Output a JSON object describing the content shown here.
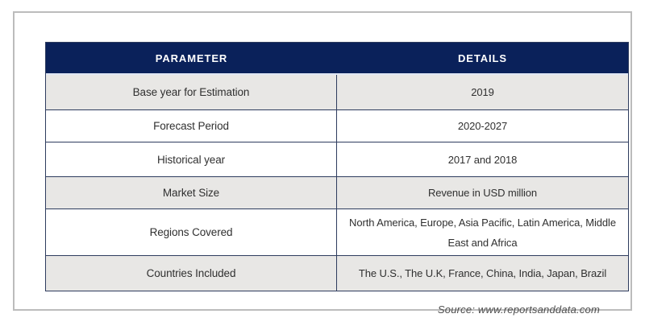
{
  "chart_data": {
    "type": "table",
    "columns": [
      "PARAMETER",
      "DETAILS"
    ],
    "rows": [
      [
        "Base year for Estimation",
        "2019"
      ],
      [
        "Forecast Period",
        "2020-2027"
      ],
      [
        "Historical year",
        "2017 and 2018"
      ],
      [
        "Market Size",
        "Revenue in USD million"
      ],
      [
        "Regions Covered",
        "North America, Europe, Asia Pacific, Latin America, Middle East and Africa"
      ],
      [
        "Countries Included",
        "The U.S., The  U.K, France, China, India, Japan, Brazil"
      ]
    ],
    "source": "Source: www.reportsanddata.com",
    "layout": {
      "shaded_rows": [
        0,
        3,
        5
      ],
      "column_split": "50/50",
      "header_style": "navy-bar-white-caps"
    }
  },
  "colors": {
    "header_bg": "#0a215a",
    "header_text": "#ffffff",
    "row_bg": "#ffffff",
    "row_alt_bg": "#e8e7e5",
    "table_border": "#2e3c5e",
    "header_underline": "#dfe6f4",
    "cell_text": "#303030",
    "source_text": "#4e4e4e",
    "frame_border": "#bcbcbc"
  }
}
